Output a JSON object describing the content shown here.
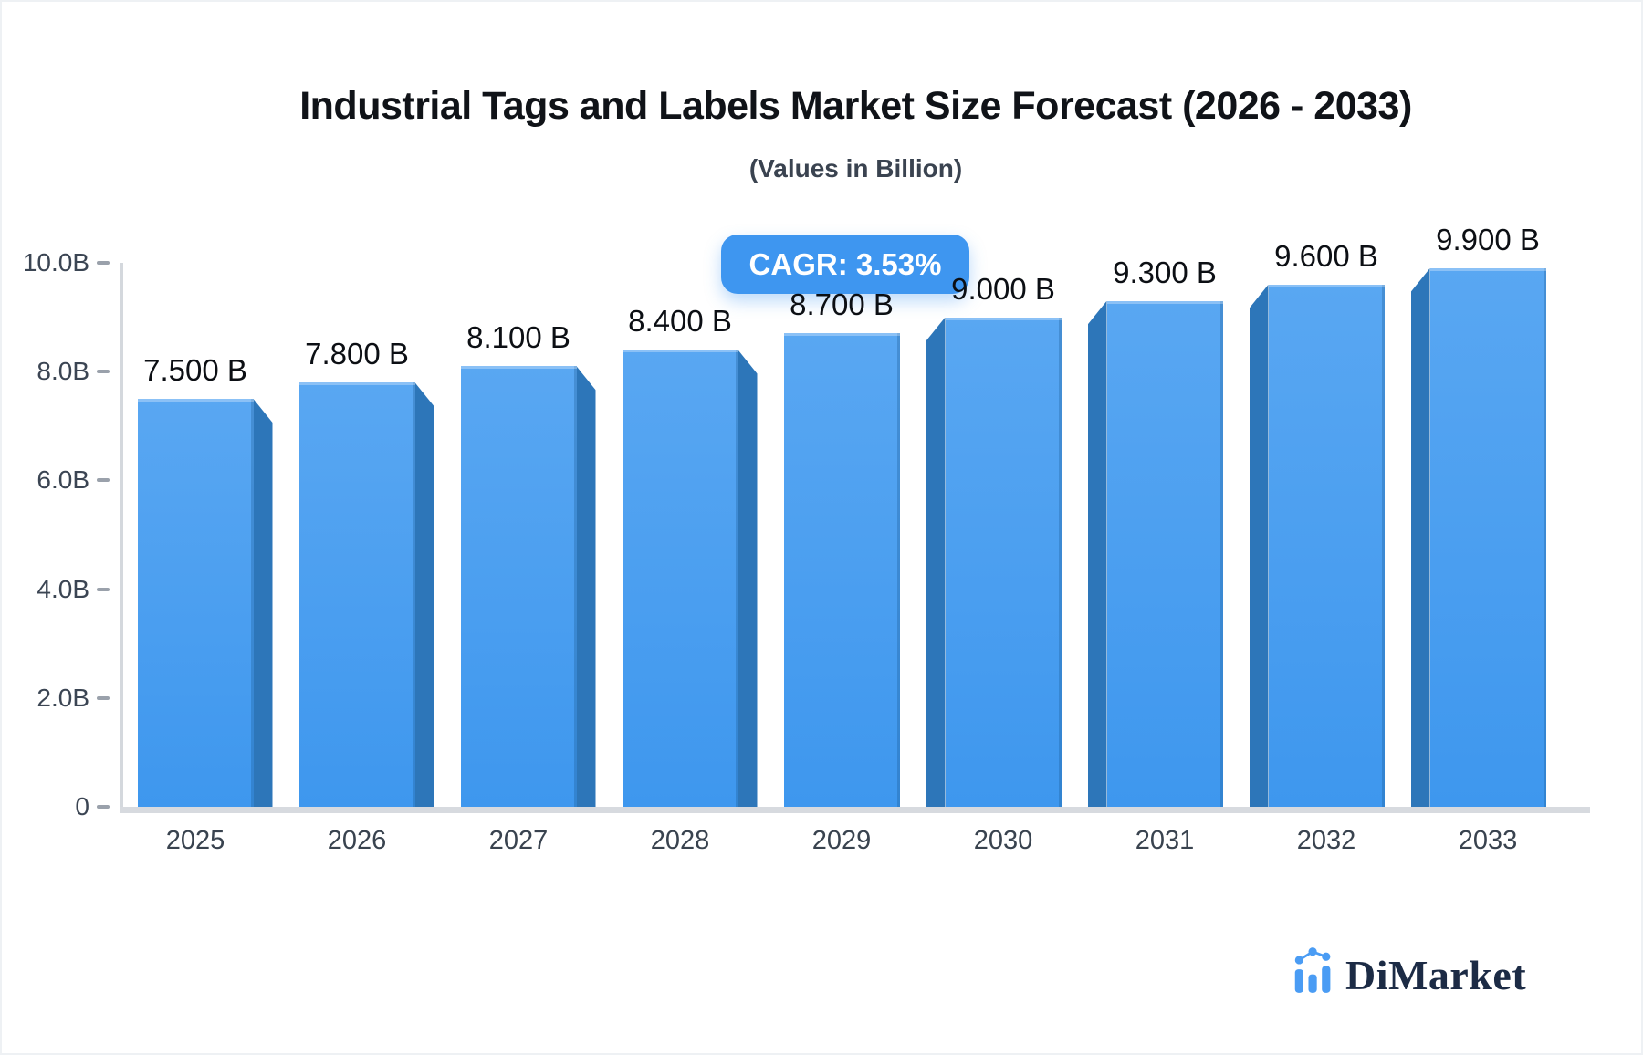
{
  "header": {
    "title": "Industrial Tags and Labels Market Size Forecast (2026 - 2033)",
    "subtitle": "(Values in Billion)"
  },
  "badge": {
    "label": "CAGR: 3.53%",
    "bg_color": "#3e96f0"
  },
  "chart_data": {
    "type": "bar",
    "title": "Industrial Tags and Labels Market Size Forecast (2026 - 2033)",
    "subtitle": "(Values in Billion)",
    "categories": [
      "2025",
      "2026",
      "2027",
      "2028",
      "2029",
      "2030",
      "2031",
      "2032",
      "2033"
    ],
    "values": [
      7.5,
      7.8,
      8.1,
      8.4,
      8.7,
      9.0,
      9.3,
      9.6,
      9.9
    ],
    "value_labels": [
      "7.500 B",
      "7.800 B",
      "8.100 B",
      "8.400 B",
      "8.700 B",
      "9.000 B",
      "9.300 B",
      "9.600 B",
      "9.900 B"
    ],
    "annotation": "CAGR: 3.53%",
    "ylim": [
      0,
      10
    ],
    "yticks": [
      {
        "value": 10,
        "label": "10.0B"
      },
      {
        "value": 8,
        "label": "8.0B"
      },
      {
        "value": 6,
        "label": "6.0B"
      },
      {
        "value": 4,
        "label": "4.0B"
      },
      {
        "value": 2,
        "label": "2.0B"
      },
      {
        "value": 0,
        "label": "0"
      }
    ],
    "grid": false,
    "legend": false,
    "colors": {
      "bar_face_top": "#59a7f2",
      "bar_face_bottom": "#3e97ee",
      "bar_side": "#2d76b9",
      "axis_line": "#d4d8dd",
      "tick_text": "#3b4553",
      "value_text": "#0c0f14"
    }
  },
  "logo": {
    "text": "DiMarket",
    "icon": "bar-line-chart-icon",
    "text_color": "#1c2b45",
    "icon_color": "#4a9cf4"
  }
}
